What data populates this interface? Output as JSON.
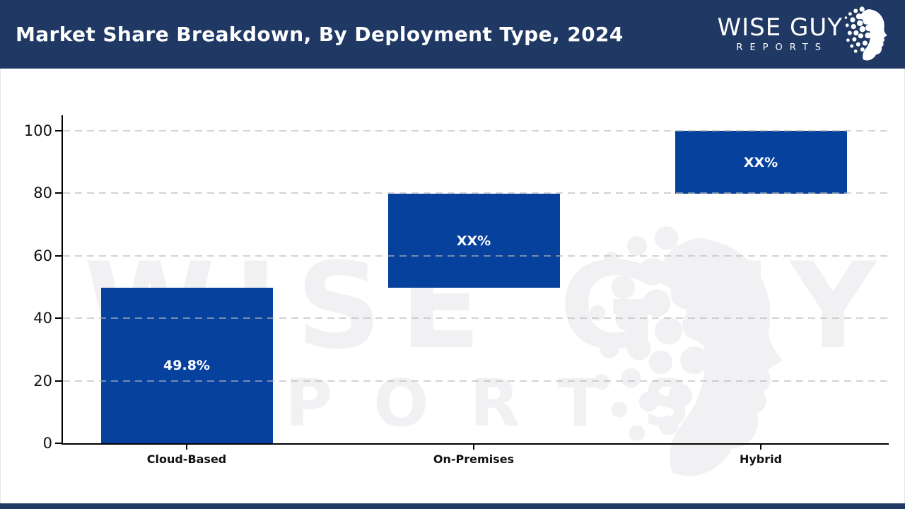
{
  "header": {
    "title": "Market Share Breakdown, By Deployment Type, 2024",
    "logo": {
      "wordmark": "WISE GUY",
      "sub": "REPORTS"
    }
  },
  "watermark": {
    "wordmark": "WISE GUY",
    "sub": "REPORTS"
  },
  "colors": {
    "header_bg": "#1f3864",
    "footer_bg": "#1f3864",
    "bar": "#07419e",
    "bar_label": "#ffffff",
    "axis": "#000000",
    "tick_label": "#111111",
    "gridline": "rgba(184,184,184,0.62)",
    "watermark": "#f1f1f4"
  },
  "chart_data": {
    "type": "bar",
    "variant": "waterfall",
    "title": "Market Share Breakdown, By Deployment Type, 2024",
    "categories": [
      "Cloud-Based",
      "On-Premises",
      "Hybrid"
    ],
    "segments": [
      {
        "category": "Cloud-Based",
        "start": 0,
        "end": 49.8,
        "label": "49.8%"
      },
      {
        "category": "On-Premises",
        "start": 49.8,
        "end": 79.8,
        "label": "XX%"
      },
      {
        "category": "Hybrid",
        "start": 79.8,
        "end": 100,
        "label": "XX%"
      }
    ],
    "xlabel": "",
    "ylabel": "",
    "y_ticks": [
      0,
      20,
      40,
      60,
      80,
      100
    ],
    "ylim": [
      0,
      105
    ],
    "grid": "horizontal dashed gridlines drawn over bars",
    "legend": "none"
  }
}
